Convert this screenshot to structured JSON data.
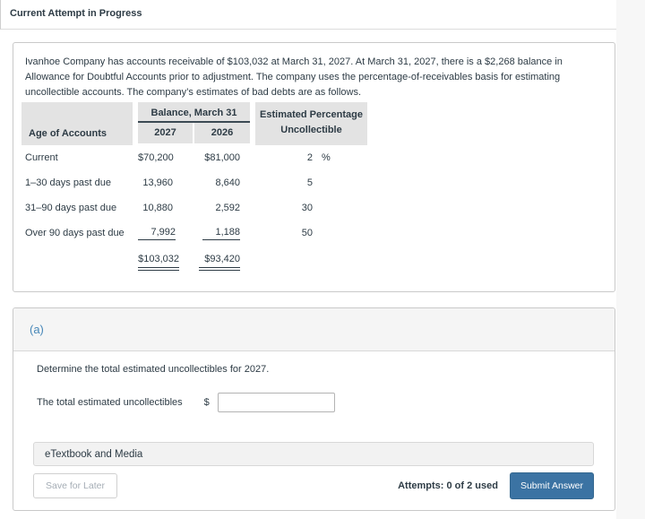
{
  "page": {
    "tab_title": "Current Attempt in Progress"
  },
  "problem": {
    "statement": "Ivanhoe Company has accounts receivable of $103,032 at March 31, 2027. At March 31, 2027, there is a $2,268 balance in Allowance for Doubtful Accounts prior to adjustment. The company uses the percentage-of-receivables basis for estimating uncollectible accounts. The company’s estimates of bad debts are as follows.",
    "table": {
      "group_header": "Balance, March 31",
      "headers": {
        "age": "Age of Accounts",
        "y2027": "2027",
        "y2026": "2026",
        "pct_line1": "Estimated Percentage",
        "pct_line2": "Uncollectible"
      },
      "rows": [
        {
          "age": "Current",
          "y2027": "$70,200",
          "y2026": "$81,000",
          "pct": "2",
          "unit": "%"
        },
        {
          "age": "1–30 days past due",
          "y2027": "13,960",
          "y2026": "8,640",
          "pct": "5",
          "unit": ""
        },
        {
          "age": "31–90 days past due",
          "y2027": "10,880",
          "y2026": "2,592",
          "pct": "30",
          "unit": ""
        },
        {
          "age": "Over 90 days past due",
          "y2027": "7,992",
          "y2026": "1,188",
          "pct": "50",
          "unit": ""
        }
      ],
      "totals": {
        "y2027": "$103,032",
        "y2026": "$93,420"
      }
    }
  },
  "part_a": {
    "label": "(a)",
    "question": "Determine the total estimated uncollectibles for 2027.",
    "answer_label": "The total estimated uncollectibles",
    "currency_symbol": "$",
    "answer_value": "",
    "etextbook_label": "eTextbook and Media",
    "save_button_label": "Save for Later",
    "attempts_text": "Attempts: 0 of 2 used",
    "submit_button_label": "Submit Answer"
  },
  "colors": {
    "text": "#2d3b45",
    "part_label_blue": "#4787b8",
    "submit_blue": "#3b73a3",
    "table_header_gray": "#e3e3e3",
    "panel_gray": "#f5f5f5",
    "etextbook_gray": "#f2f2f2",
    "side_background": "#f7f7f7",
    "disabled_text": "#a5adb5"
  }
}
